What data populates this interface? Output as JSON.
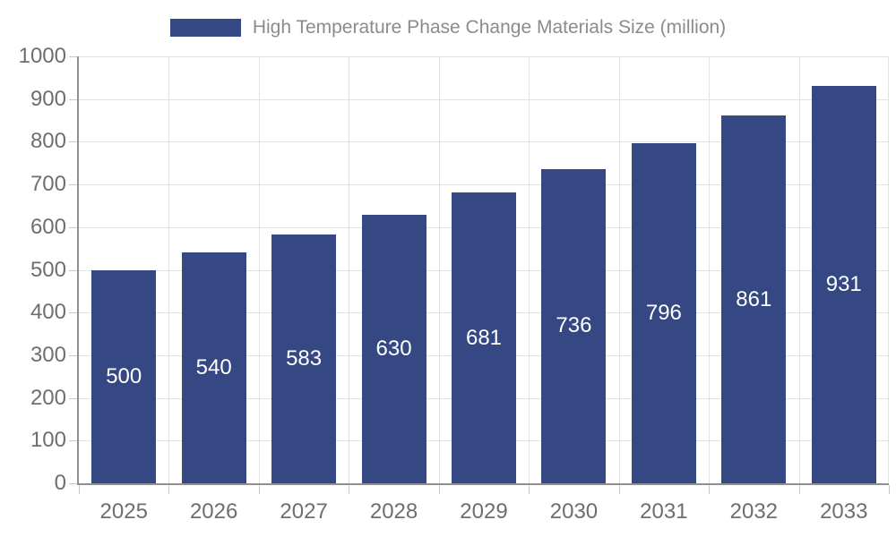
{
  "chart_data": {
    "type": "bar",
    "title": "",
    "legend_label": "High Temperature Phase Change Materials Size (million)",
    "legend_position": "top-center",
    "categories": [
      "2025",
      "2026",
      "2027",
      "2028",
      "2029",
      "2030",
      "2031",
      "2032",
      "2033"
    ],
    "series": [
      {
        "name": "High Temperature Phase Change Materials Size (million)",
        "values": [
          500,
          540,
          583,
          630,
          681,
          736,
          796,
          861,
          931
        ]
      }
    ],
    "value_labels_shown": true,
    "xlabel": "",
    "ylabel": "",
    "ylim": [
      0,
      1000
    ],
    "ytick_step": 100,
    "grid": "horizontal-and-vertical",
    "colors": {
      "bar": "#364884",
      "legend_text": "#8B8B8B",
      "axis_line": "#909090",
      "gridline": "#E2E2E2",
      "tick_mark": "#C8C8C8",
      "tick_label": "#6E6E6E",
      "value_label": "#FFFFFF",
      "background": "#FFFFFF"
    }
  }
}
